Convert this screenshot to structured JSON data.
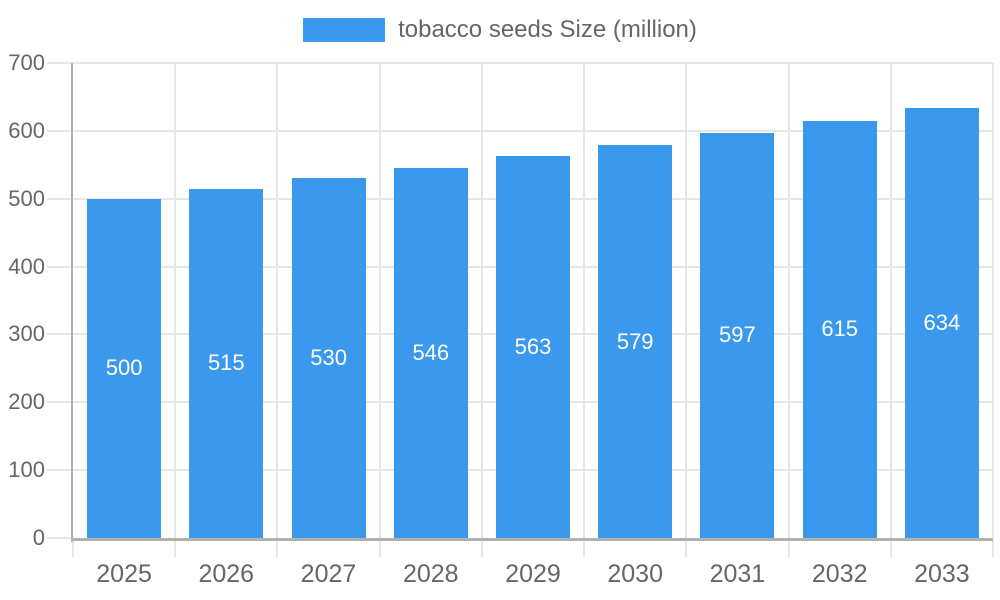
{
  "legend": {
    "label": "tobacco seeds Size (million)"
  },
  "chart_data": {
    "type": "bar",
    "title": "tobacco seeds Size (million)",
    "series_name": "tobacco seeds Size (million)",
    "categories": [
      "2025",
      "2026",
      "2027",
      "2028",
      "2029",
      "2030",
      "2031",
      "2032",
      "2033"
    ],
    "values": [
      500,
      515,
      530,
      546,
      563,
      579,
      597,
      615,
      634
    ],
    "xlabel": "",
    "ylabel": "",
    "ylim": [
      0,
      700
    ],
    "yticks": [
      0,
      100,
      200,
      300,
      400,
      500,
      600,
      700
    ],
    "grid": true,
    "legend_position": "top",
    "bar_color": "#3A99EC",
    "value_label_color": "#ffffff",
    "axis_label_color": "#666666",
    "grid_color": "#e6e6e6",
    "axis_line_color": "#b0b0b0"
  }
}
